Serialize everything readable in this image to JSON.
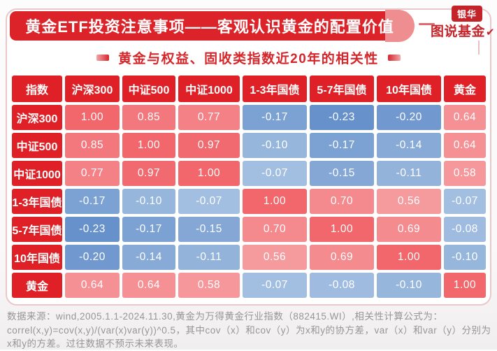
{
  "header": {
    "title": "黄金ETF投资注意事项——客观认识黄金的配置价值",
    "logo": {
      "badge": "银华",
      "name": "图说基金",
      "check": "✔"
    }
  },
  "subtitle": "黄金与权益、固收类指数近20年的相关性",
  "chart_data": {
    "type": "heatmap",
    "title": "黄金与权益、固收类指数近20年的相关性",
    "corner_label": "指数",
    "columns": [
      "沪深300",
      "中证500",
      "中证1000",
      "1-3年国债",
      "5-7年国债",
      "10年国债",
      "黄金"
    ],
    "rows": [
      {
        "label": "沪深300",
        "values": [
          1.0,
          0.85,
          0.77,
          -0.17,
          -0.23,
          -0.2,
          0.64
        ]
      },
      {
        "label": "中证500",
        "values": [
          0.85,
          1.0,
          0.97,
          -0.1,
          -0.17,
          -0.14,
          0.64
        ]
      },
      {
        "label": "中证1000",
        "values": [
          0.77,
          0.97,
          1.0,
          -0.07,
          -0.15,
          -0.11,
          0.58
        ]
      },
      {
        "label": "1-3年国债",
        "values": [
          -0.17,
          -0.1,
          -0.07,
          1.0,
          0.7,
          0.56,
          -0.07
        ]
      },
      {
        "label": "5-7年国债",
        "values": [
          -0.23,
          -0.17,
          -0.15,
          0.7,
          1.0,
          0.69,
          -0.08
        ]
      },
      {
        "label": "10年国债",
        "values": [
          -0.2,
          -0.14,
          -0.11,
          0.56,
          0.69,
          1.0,
          -0.1
        ]
      },
      {
        "label": "黄金",
        "values": [
          0.64,
          0.64,
          0.58,
          -0.07,
          -0.08,
          -0.1,
          1.0
        ]
      }
    ],
    "value_format": "2dp",
    "legend_position": "none",
    "colors": {
      "brand_red": "#DC2329",
      "table_header_bg": "#DF2127",
      "table_header_text": "#FFFFFF",
      "positive_strong": "#F1676C",
      "positive_light": "#FBDADC",
      "negative_strong": "#5E8BC8",
      "negative_light": "#BDD2EA",
      "card_border": "#EAC8CA",
      "footnote_gray": "#979595"
    }
  },
  "footer": {
    "note": "数据来源：wind,2005.1.1-2024.11.30,黄金为万得黄金行业指数（882415.WI）,相关性计算公式为：correl(x,y)=cov(x,y)/(var(x)var(y))^0.5，其中cov（x）和cov（y）为x和y的协方差，var（x）和var（y）分别为x和y的方差。过往数据不预示未来表现。"
  }
}
